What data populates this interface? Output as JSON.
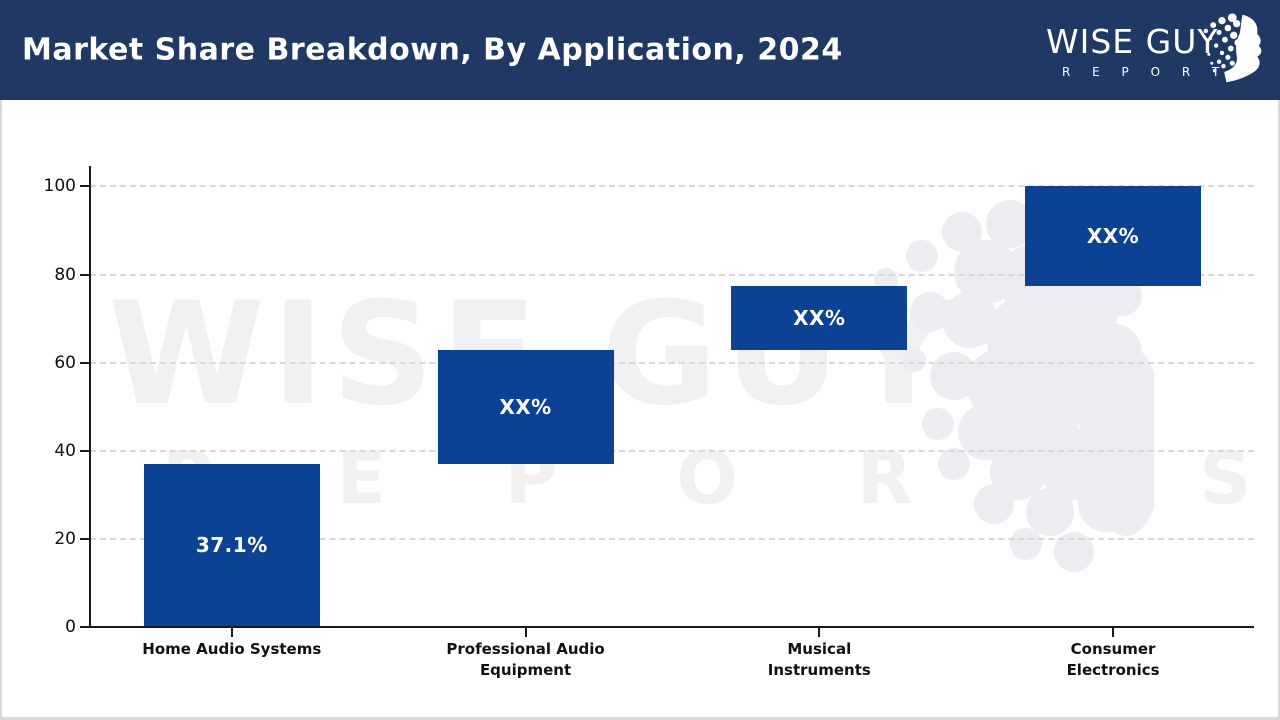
{
  "header": {
    "title": "Market Share Breakdown, By Application, 2024",
    "logo": {
      "name": "WISE GUY",
      "sub": "R E P O R T S"
    }
  },
  "watermark": {
    "line1": "WISE GUY",
    "line2": "R E P O R T S"
  },
  "chart_data": {
    "type": "bar",
    "subtype": "waterfall",
    "title": "Market Share Breakdown, By Application, 2024",
    "categories": [
      "Home Audio Systems",
      "Professional Audio\nEquipment",
      "Musical\nInstruments",
      "Consumer\nElectronics"
    ],
    "segments": [
      {
        "category": "Home Audio Systems",
        "start": 0,
        "end": 37.1,
        "label": "37.1%"
      },
      {
        "category": "Professional Audio Equipment",
        "start": 37.1,
        "end": 62.8,
        "label": "XX%"
      },
      {
        "category": "Musical Instruments",
        "start": 62.8,
        "end": 77.5,
        "label": "XX%"
      },
      {
        "category": "Consumer Electronics",
        "start": 77.5,
        "end": 100,
        "label": "XX%"
      }
    ],
    "yticks": [
      0,
      20,
      40,
      60,
      80,
      100
    ],
    "ylim": [
      0,
      100
    ],
    "xlabel": "",
    "ylabel": "",
    "grid": "horizontal-dashed",
    "legend": "none",
    "bar_color": "#0b4294",
    "bar_label_color": "#ffffff",
    "header_bg_color": "#1f3864",
    "axis_color": "#1a1a1a",
    "gridline_color": "#d7d7d7",
    "watermark_color": "#f1f1f4"
  }
}
